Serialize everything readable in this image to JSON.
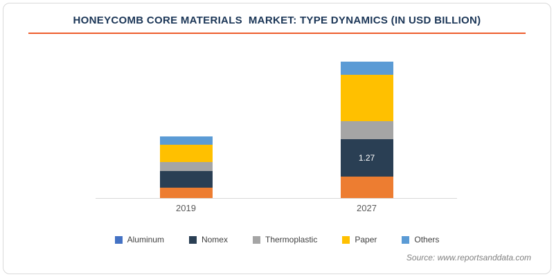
{
  "title": "HONEYCOMB CORE MATERIALS  MARKET: TYPE DYNAMICS (IN USD BILLION)",
  "source": "Source: www.reportsanddata.com",
  "accent_colors": {
    "title_text": "#1a3556",
    "title_rule": "#ed5c2c",
    "axis_line": "#d9d9d9",
    "axis_label_text": "#595959"
  },
  "chart_data": {
    "type": "bar",
    "subtype": "stacked",
    "title": "HONEYCOMB CORE MATERIALS  MARKET: TYPE DYNAMICS (IN USD BILLION)",
    "categories": [
      "2019",
      "2027"
    ],
    "series": [
      {
        "name": "Aluminum",
        "values": [
          0.35,
          0.71
        ],
        "bar_color": "#ed7d31",
        "legend_color": "#4472c4"
      },
      {
        "name": "Nomex",
        "values": [
          0.55,
          1.27
        ],
        "bar_color": "#2a3f54",
        "legend_color": "#2a3f54"
      },
      {
        "name": "Thermoplastic",
        "values": [
          0.3,
          0.61
        ],
        "bar_color": "#a5a5a5",
        "legend_color": "#a5a5a5"
      },
      {
        "name": "Paper",
        "values": [
          0.6,
          1.54
        ],
        "bar_color": "#ffc000",
        "legend_color": "#ffc000"
      },
      {
        "name": "Others",
        "values": [
          0.27,
          0.46
        ],
        "bar_color": "#5b9bd5",
        "legend_color": "#5b9bd5"
      }
    ],
    "data_labels": [
      {
        "category": "2027",
        "series": "Nomex",
        "text": "1.27"
      }
    ],
    "ylim": [
      0,
      5
    ],
    "xlabel": "",
    "ylabel": "",
    "grid": false,
    "legend_position": "bottom"
  }
}
